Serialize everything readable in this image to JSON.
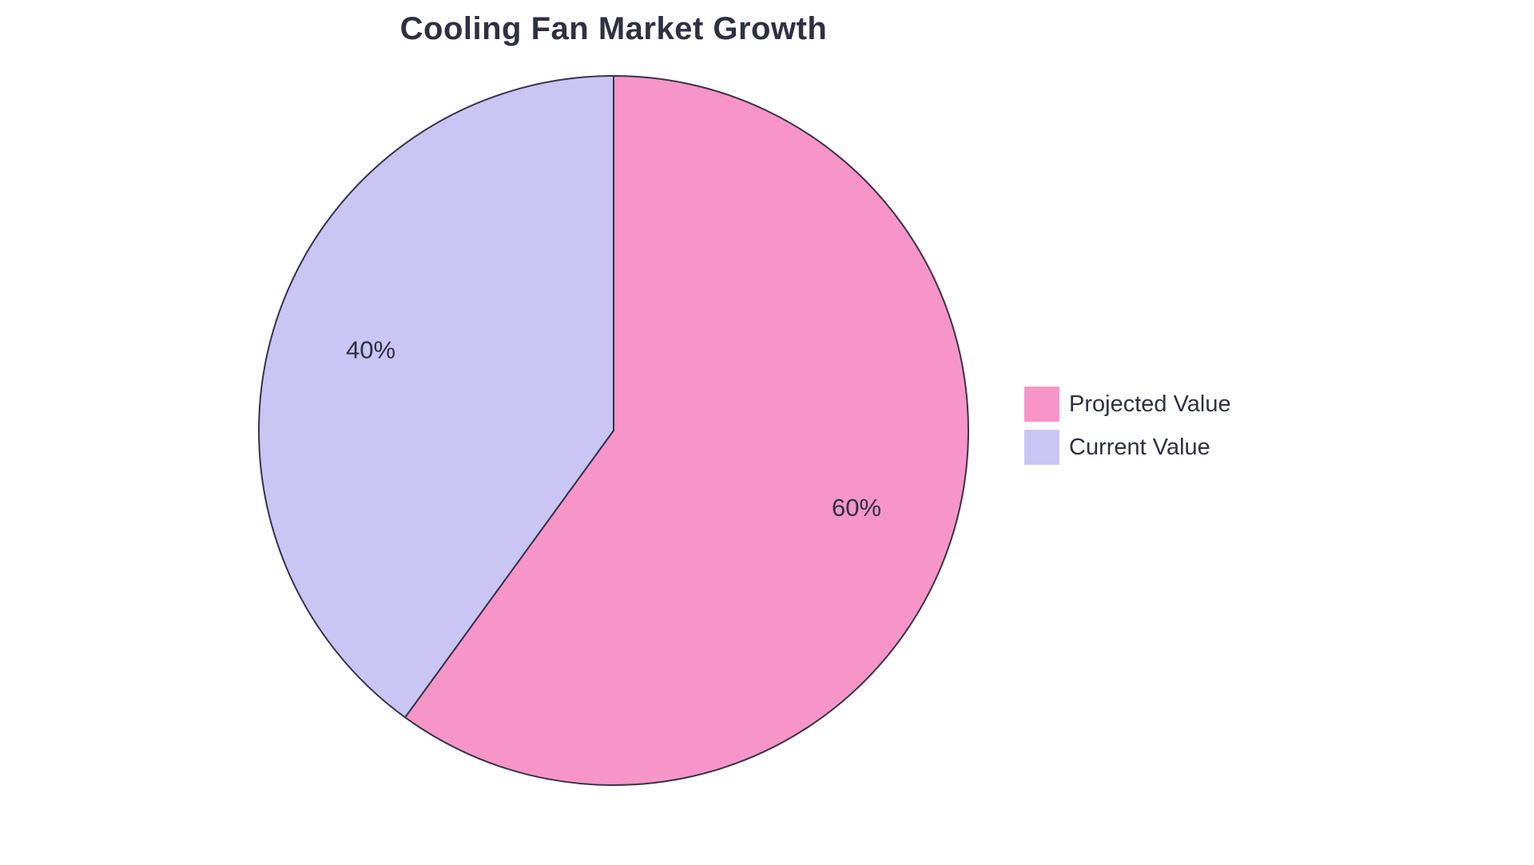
{
  "chart_data": {
    "type": "pie",
    "title": "Cooling Fan Market Growth",
    "slices": [
      {
        "label": "Projected Value",
        "value": 60,
        "percent_label": "60%",
        "color": "#f795c8"
      },
      {
        "label": "Current Value",
        "value": 40,
        "percent_label": "40%",
        "color": "#c9c6f4"
      }
    ],
    "legend_position": "right",
    "start_angle_deg": -90,
    "direction": "clockwise",
    "stroke_color": "#35344a",
    "text_color": "#2d3142"
  }
}
